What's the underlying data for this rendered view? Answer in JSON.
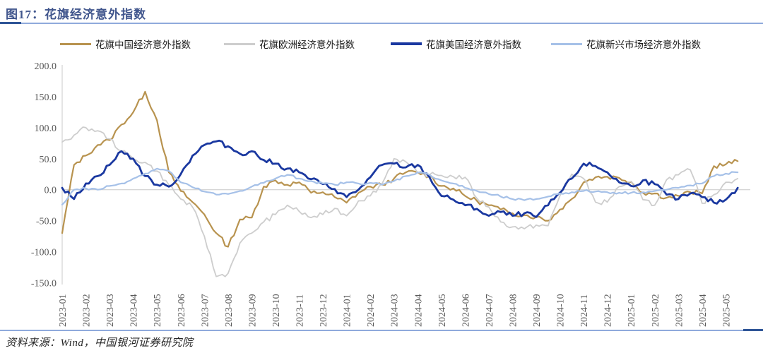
{
  "header": {
    "title": "图17：花旗经济意外指数"
  },
  "footer": {
    "source": "资料来源：Wind，中国银河证券研究院"
  },
  "colors": {
    "accent_dark": "#2F5597",
    "accent_light": "#8FAADC",
    "title_text": "#41568D",
    "axis_line": "#C8C8C8",
    "tick_text": "#595959"
  },
  "chart_data": {
    "type": "line",
    "title": "花旗经济意外指数",
    "xlabel": "",
    "ylabel": "",
    "ylim": [
      -150,
      200
    ],
    "y_ticks": [
      200,
      150,
      100,
      50,
      0,
      -50,
      -100,
      -150
    ],
    "grid": "zero-line-and-left-axis-only",
    "legend_position": "top",
    "x_sampling": "2 points per month (start and mid-month), 2023-01 through 2025-05",
    "x_tick_labels": [
      "2023-01",
      "2023-02",
      "2023-03",
      "2023-04",
      "2023-05",
      "2023-06",
      "2023-07",
      "2023-08",
      "2023-09",
      "2023-10",
      "2023-11",
      "2023-12",
      "2024-01",
      "2024-02",
      "2024-03",
      "2024-04",
      "2024-05",
      "2024-06",
      "2024-07",
      "2024-08",
      "2024-09",
      "2024-10",
      "2024-11",
      "2024-12",
      "2025-01",
      "2025-02",
      "2025-03",
      "2025-04",
      "2025-05"
    ],
    "series": [
      {
        "name": "花旗中国经济意外指数",
        "color": "#B8934F",
        "values": [
          -70,
          40,
          55,
          72,
          80,
          105,
          125,
          158,
          112,
          28,
          -2,
          -20,
          -40,
          -70,
          -92,
          -48,
          -45,
          5,
          15,
          8,
          12,
          -5,
          -4,
          -12,
          -21,
          -5,
          5,
          8,
          18,
          28,
          28,
          22,
          6,
          2,
          -10,
          -18,
          -25,
          -32,
          -38,
          -41,
          -44,
          -50,
          -32,
          -15,
          12,
          20,
          21,
          19,
          13,
          -5,
          -6,
          -13,
          -10,
          -4,
          -6,
          38,
          41,
          46
        ]
      },
      {
        "name": "花旗欧洲经济意外指数",
        "color": "#CDCDCD",
        "values": [
          77,
          88,
          100,
          95,
          82,
          62,
          50,
          44,
          30,
          8,
          -15,
          -28,
          -75,
          -140,
          -135,
          -86,
          -70,
          -52,
          -40,
          -25,
          -35,
          -45,
          -40,
          -30,
          -42,
          -18,
          -10,
          10,
          50,
          45,
          27,
          24,
          23,
          21,
          20,
          -14,
          -28,
          -52,
          -60,
          -63,
          -57,
          -58,
          -10,
          25,
          18,
          -20,
          -20,
          5,
          13,
          -16,
          -25,
          16,
          24,
          32,
          -22,
          -8,
          12,
          18
        ]
      },
      {
        "name": "花旗美国经济意外指数",
        "color": "#1A38A0",
        "values": [
          3,
          -15,
          10,
          22,
          40,
          62,
          50,
          22,
          8,
          5,
          25,
          55,
          72,
          78,
          70,
          58,
          62,
          48,
          42,
          34,
          28,
          17,
          9,
          1,
          -12,
          0,
          20,
          40,
          42,
          36,
          40,
          20,
          -10,
          -16,
          -25,
          -31,
          -42,
          -36,
          -42,
          -38,
          -44,
          -25,
          -5,
          18,
          42,
          38,
          28,
          12,
          6,
          15,
          9,
          -8,
          -15,
          -6,
          -12,
          -21,
          -16,
          3
        ]
      },
      {
        "name": "花旗新兴市场经济意外指数",
        "color": "#A6C1E8",
        "values": [
          -24,
          0,
          2,
          0,
          6,
          10,
          18,
          26,
          34,
          30,
          12,
          4,
          -3,
          -8,
          -7,
          -2,
          5,
          11,
          18,
          24,
          18,
          14,
          10,
          8,
          12,
          10,
          11,
          8,
          14,
          22,
          28,
          24,
          15,
          10,
          3,
          -2,
          -7,
          -11,
          -15,
          -17,
          -15,
          -11,
          -6,
          -4,
          -2,
          -3,
          -4,
          -5,
          -5,
          -4,
          -2,
          0,
          3,
          7,
          10,
          22,
          26,
          28
        ]
      }
    ]
  }
}
